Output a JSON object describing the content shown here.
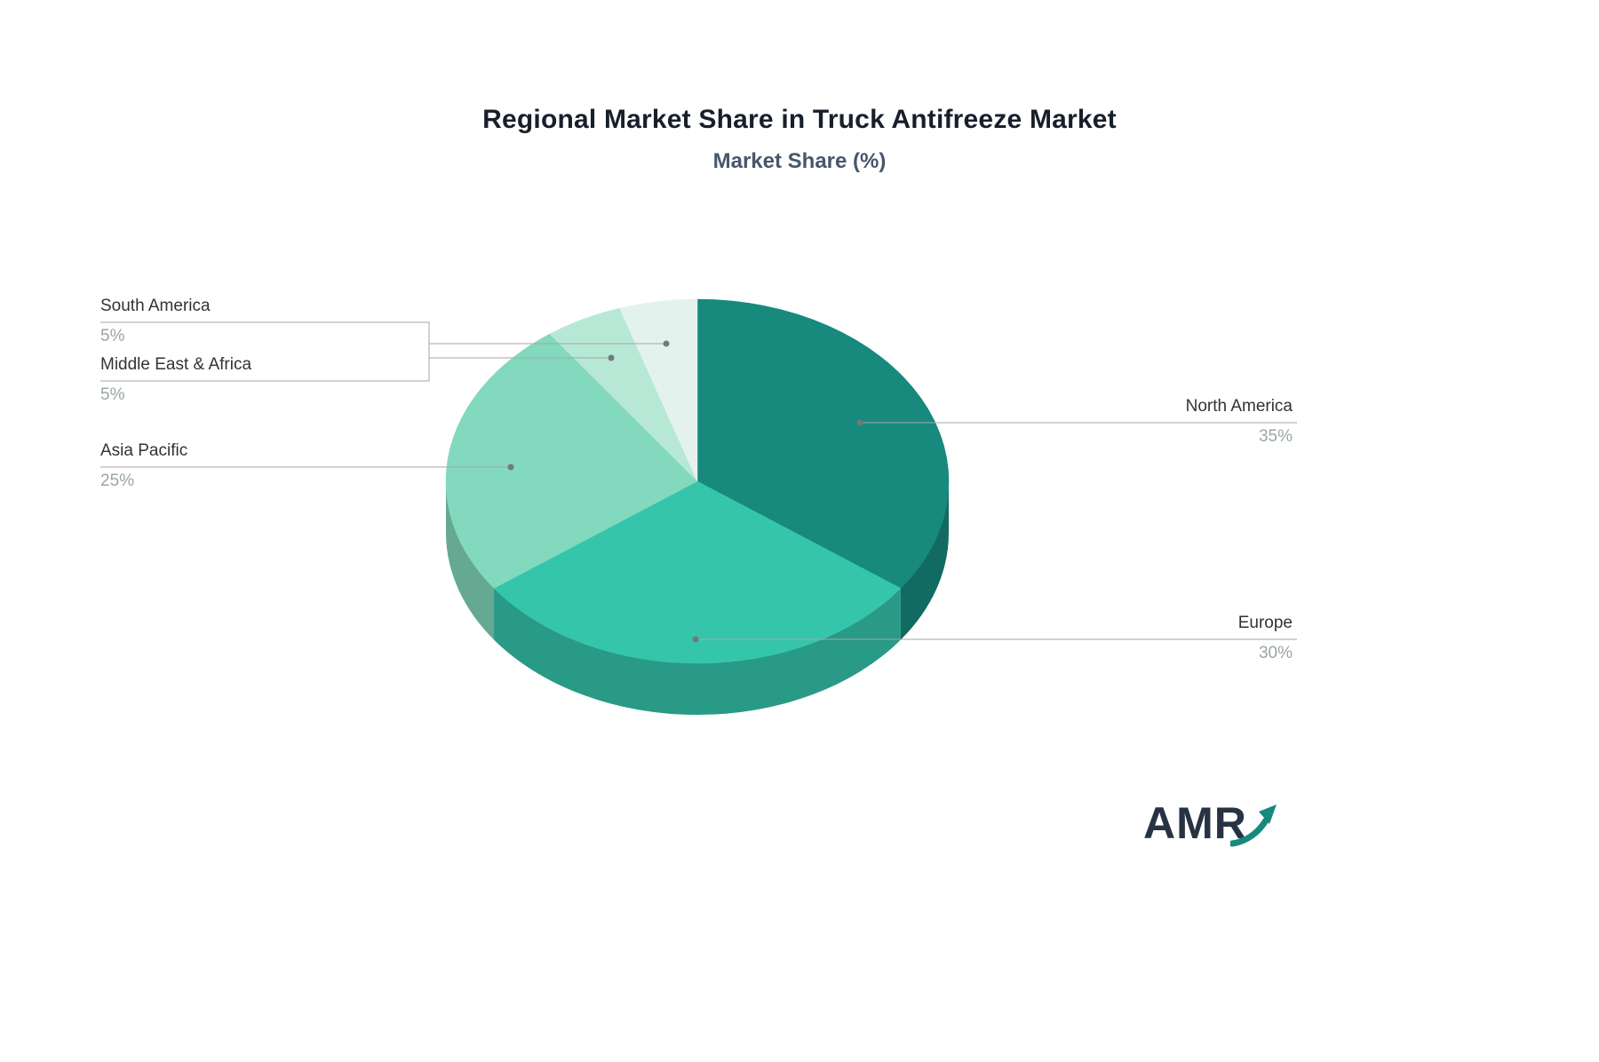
{
  "title": "Regional Market Share in Truck Antifreeze Market",
  "subtitle": "Market Share (%)",
  "logo": {
    "text": "AMR"
  },
  "chart_data": {
    "type": "pie",
    "title": "Regional Market Share in Truck Antifreeze Market",
    "subtitle": "Market Share (%)",
    "unit": "%",
    "style": "3d-pie",
    "start_angle_deg": 0,
    "direction": "clockwise",
    "legend_position": "callout-labels",
    "slices": [
      {
        "label": "North America",
        "value": 35,
        "pct": "35%",
        "color": "#17897d",
        "label_side": "right"
      },
      {
        "label": "Europe",
        "value": 30,
        "pct": "30%",
        "color": "#35c5ab",
        "label_side": "right"
      },
      {
        "label": "Asia Pacific",
        "value": 25,
        "pct": "25%",
        "color": "#82d9bd",
        "label_side": "left"
      },
      {
        "label": "Middle East & Africa",
        "value": 5,
        "pct": "5%",
        "color": "#b7e8d6",
        "label_side": "left"
      },
      {
        "label": "South America",
        "value": 5,
        "pct": "5%",
        "color": "#e4f2ee",
        "label_side": "left"
      }
    ]
  }
}
